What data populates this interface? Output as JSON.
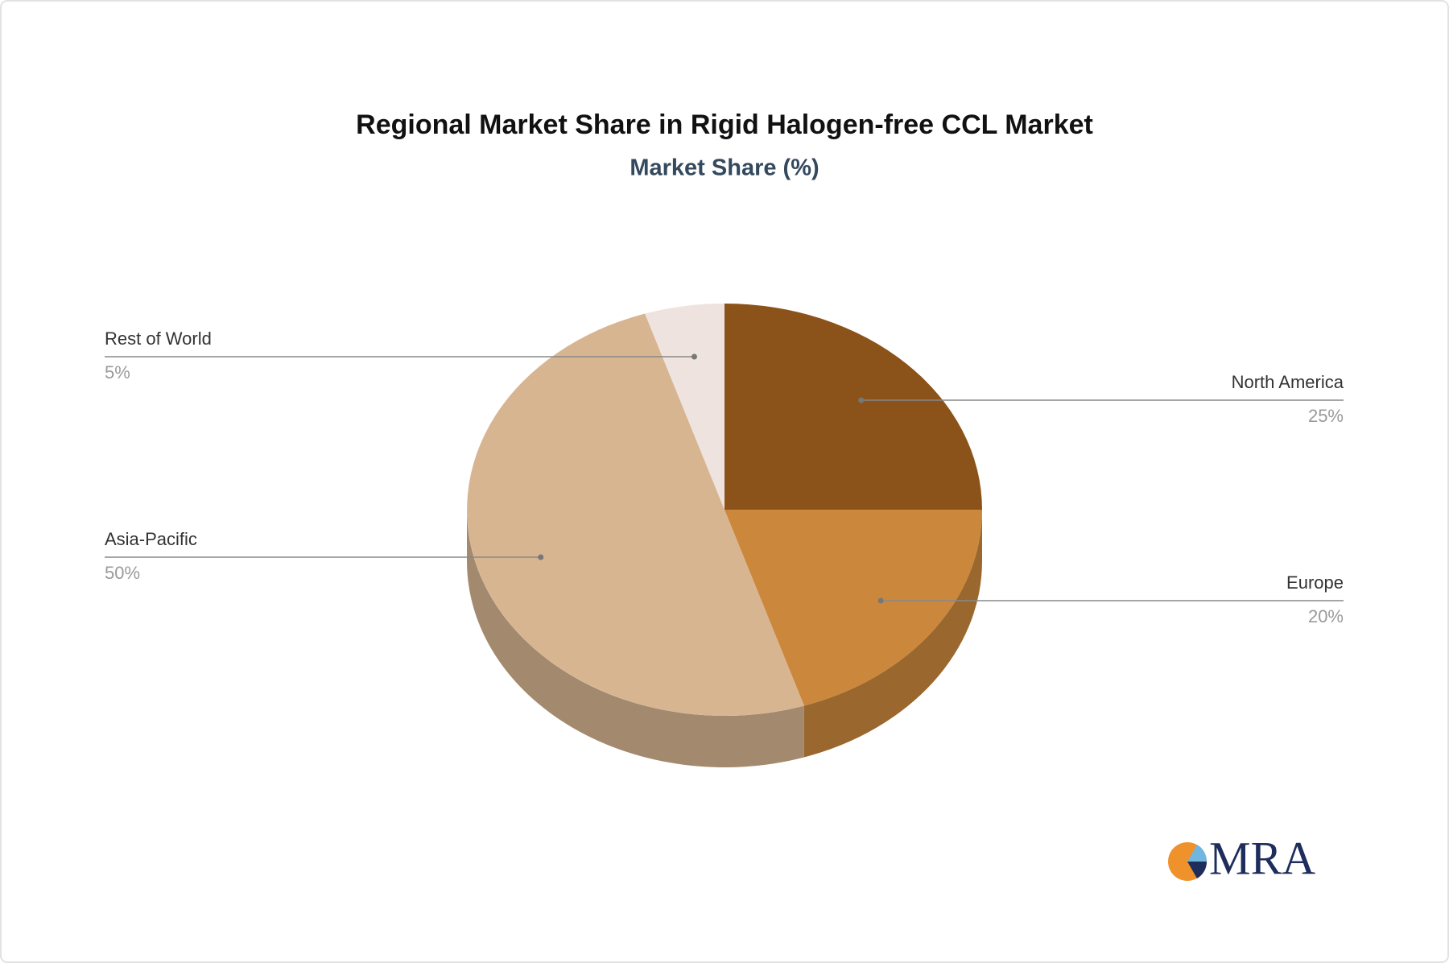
{
  "chart_data": {
    "type": "pie3d",
    "title": "Regional Market Share in Rigid Halogen-free CCL Market",
    "subtitle": "Market Share (%)",
    "categories": [
      "North America",
      "Europe",
      "Asia-Pacific",
      "Rest of World"
    ],
    "values": [
      25,
      20,
      50,
      5
    ],
    "value_labels": [
      "25%",
      "20%",
      "50%",
      "5%"
    ],
    "colors": [
      "#8b5319",
      "#cb883c",
      "#d7b591",
      "#eee3de"
    ]
  },
  "logo": "MRA"
}
